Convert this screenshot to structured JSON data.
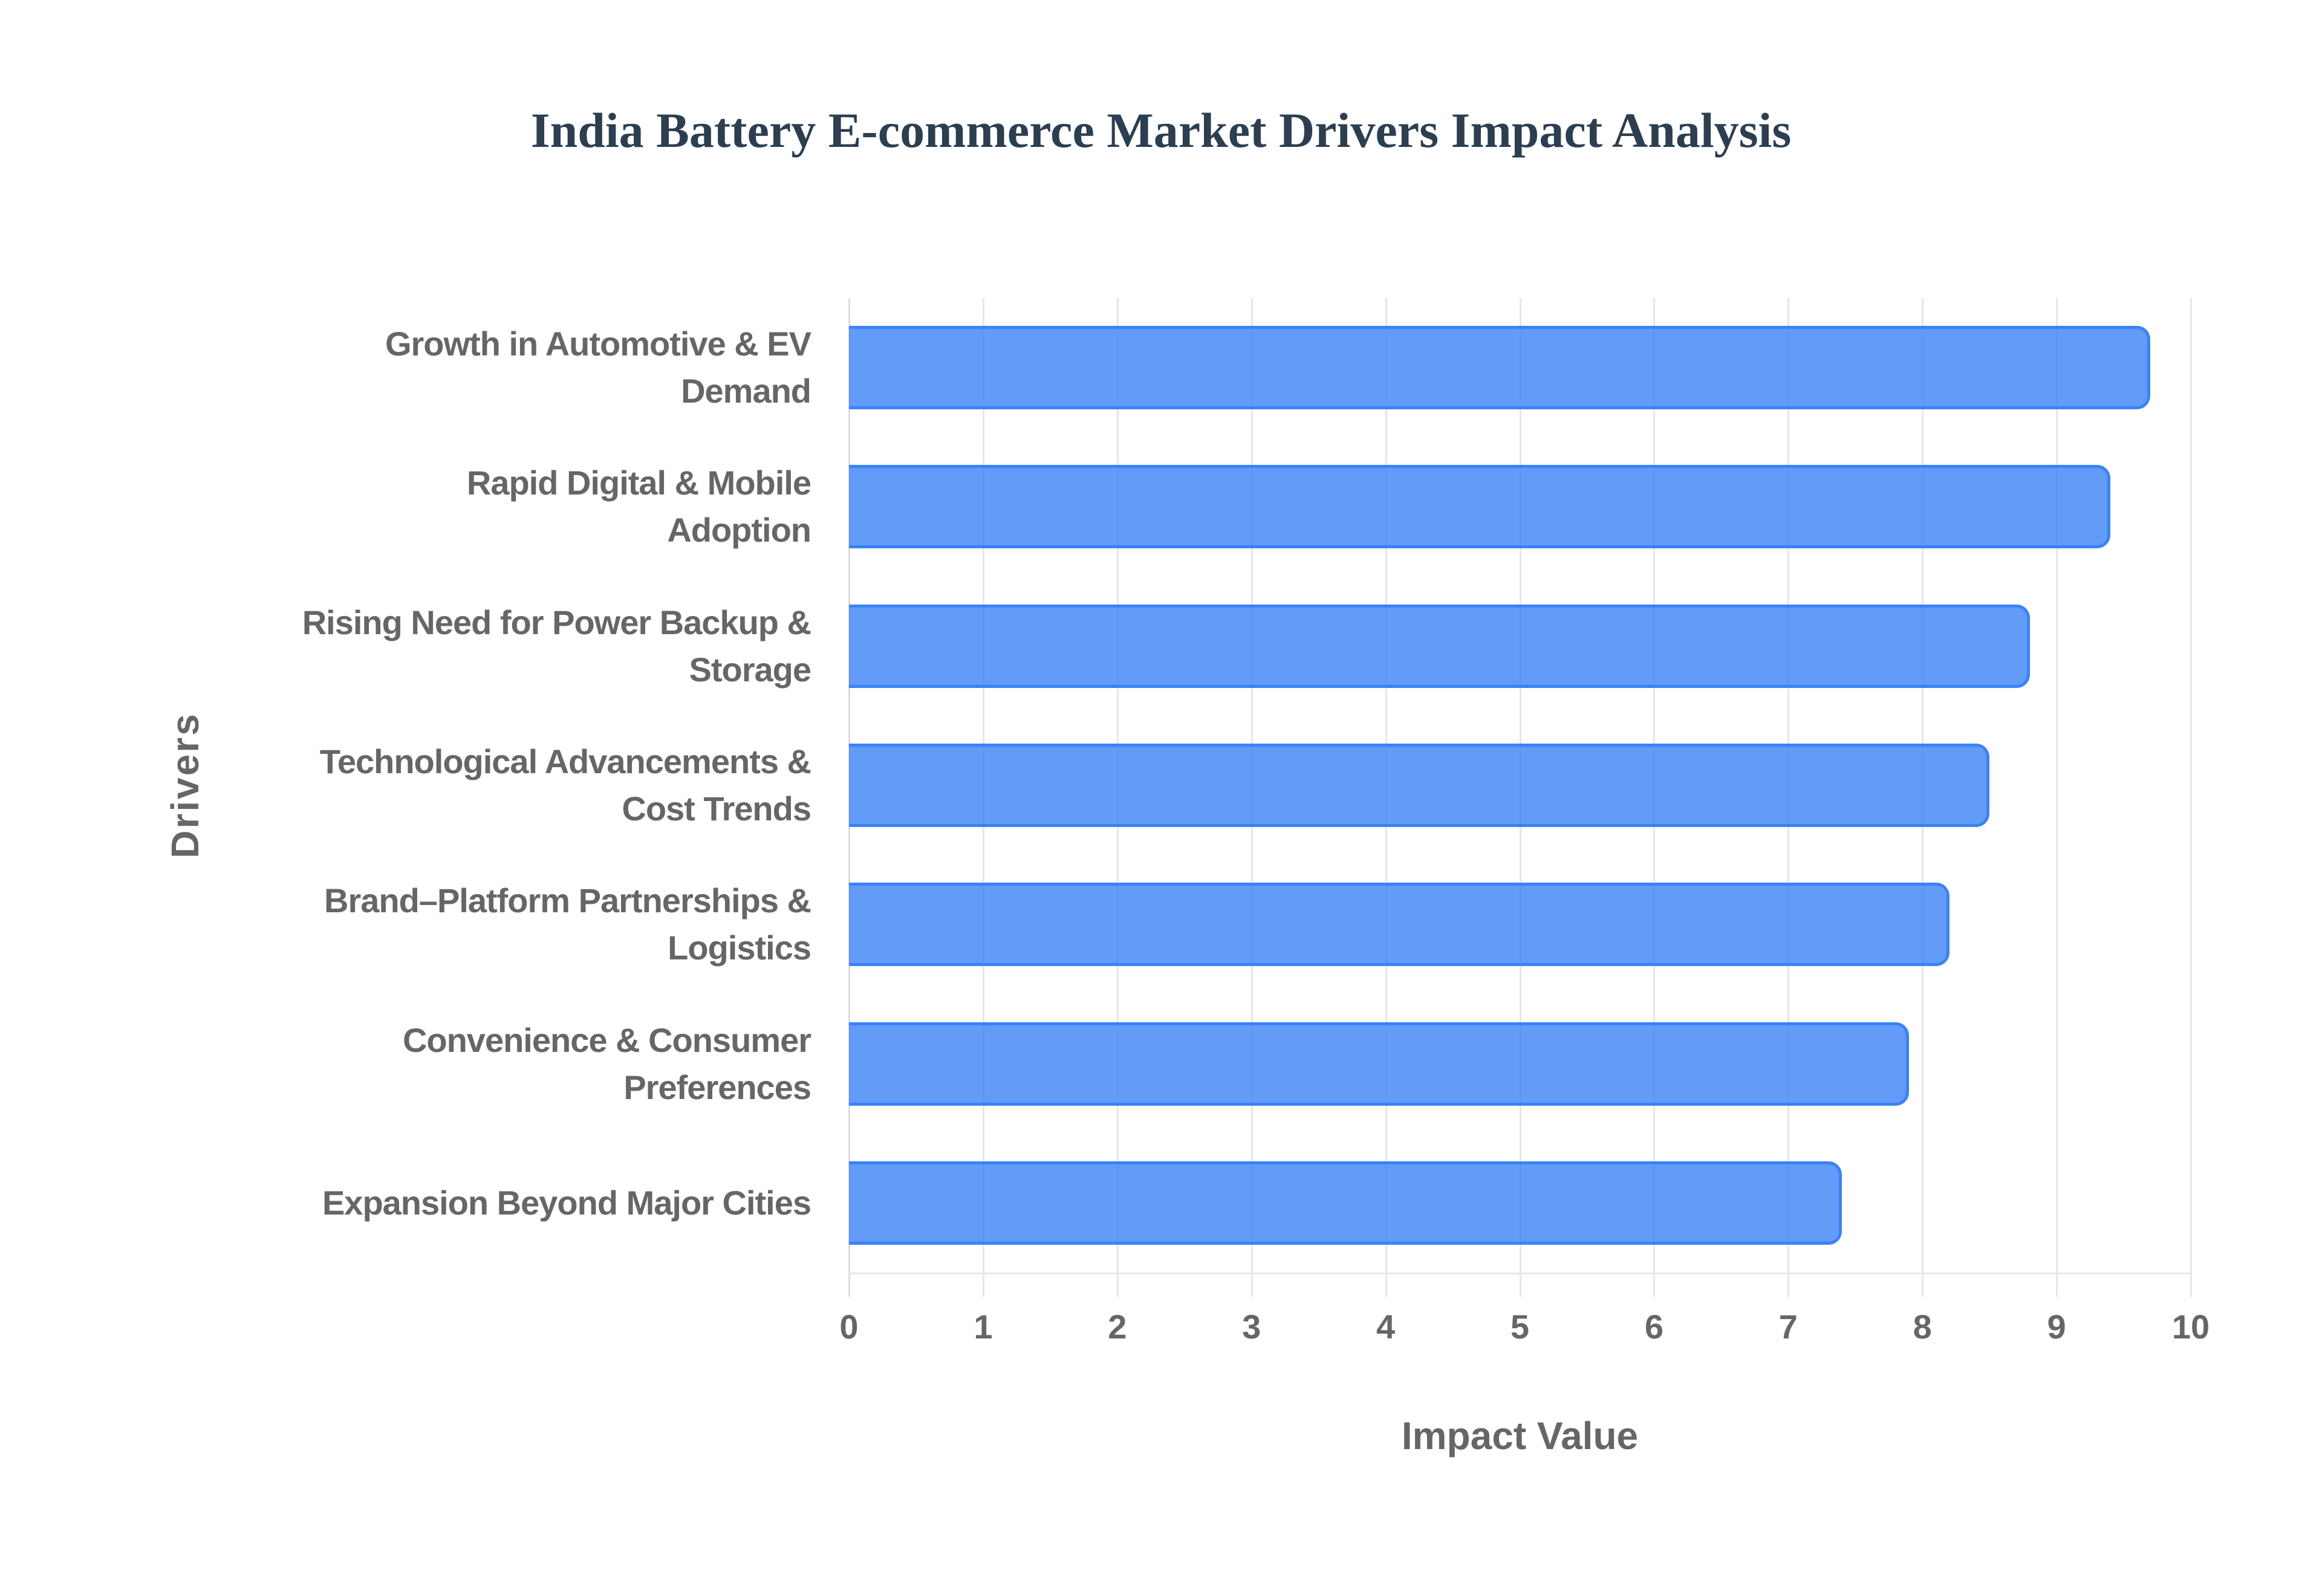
{
  "chart_data": {
    "type": "bar",
    "orientation": "horizontal",
    "title": "India Battery E-commerce Market Drivers Impact Analysis",
    "xlabel": "Impact Value",
    "ylabel": "Drivers",
    "categories": [
      "Growth in Automotive & EV Demand",
      "Rapid Digital & Mobile Adoption",
      "Rising Need for Power Backup & Storage",
      "Technological Advancements & Cost Trends",
      "Brand–Platform Partnerships & Logistics",
      "Convenience & Consumer Preferences",
      "Expansion Beyond Major Cities"
    ],
    "category_lines": [
      [
        "Growth in Automotive & EV",
        "Demand"
      ],
      [
        "Rapid Digital & Mobile",
        "Adoption"
      ],
      [
        "Rising Need for Power Backup &",
        "Storage"
      ],
      [
        "Technological Advancements &",
        "Cost Trends"
      ],
      [
        "Brand–Platform Partnerships &",
        "Logistics"
      ],
      [
        "Convenience & Consumer",
        "Preferences"
      ],
      [
        "Expansion Beyond Major Cities"
      ]
    ],
    "values": [
      9.7,
      9.4,
      8.8,
      8.5,
      8.2,
      7.9,
      7.4
    ],
    "xlim": [
      0,
      10
    ],
    "xticks": [
      "0",
      "1",
      "2",
      "3",
      "4",
      "5",
      "6",
      "7",
      "8",
      "9",
      "10"
    ],
    "grid": true,
    "legend": "none",
    "colors": {
      "bar_fill": "rgba(59,130,246,0.8)",
      "bar_border": "#3b82f6",
      "title": "#2c3e50",
      "text": "#666666",
      "grid": "#e6e6e6"
    }
  }
}
